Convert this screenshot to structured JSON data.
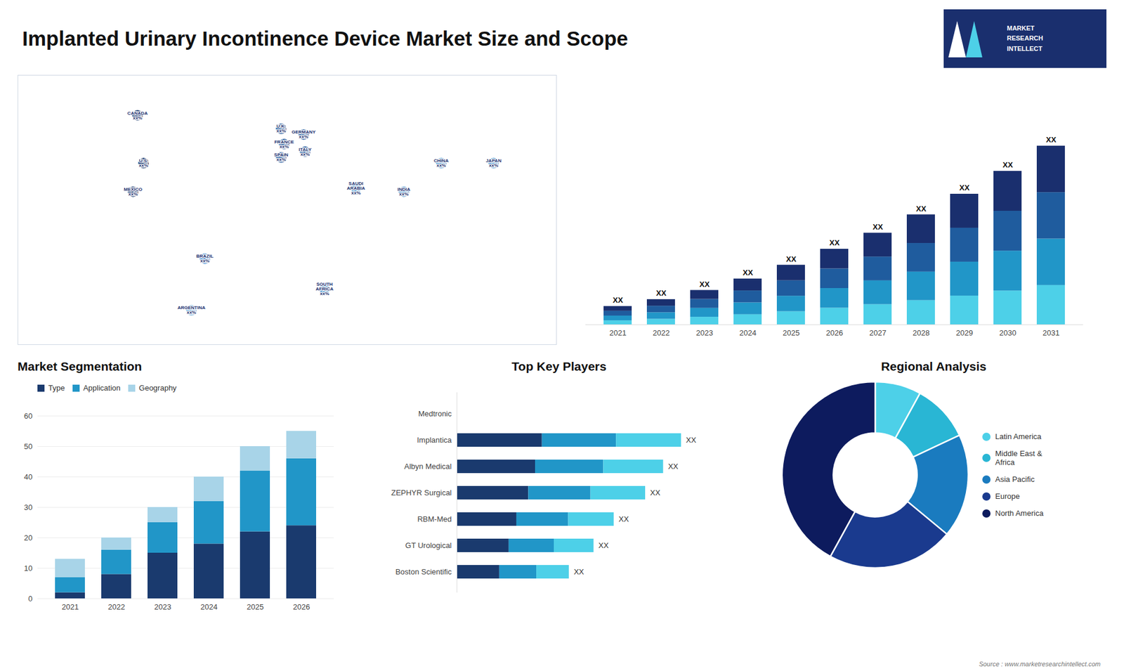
{
  "title": "Implanted Urinary Incontinence Device Market Size and Scope",
  "annotations": [
    "MARKET",
    "RESEARCH",
    "INTELLECT",
    "Source : www.marketresearchintellect.com"
  ],
  "chart_data": [
    {
      "type": "map",
      "categories": [
        "CANADA\nxx%",
        "U.S.\nxx%",
        "MEXICO\nxx%",
        "BRAZIL\nxx%",
        "ARGENTINA\nxx%",
        "U.K.\nxx%",
        "FRANCE\nxx%",
        "GERMANY\nxx%",
        "SPAIN\nxx%",
        "ITALY\nxx%",
        "SAUDI\nARABIA\nxx%",
        "SOUTH\nAFRICA\nxx%",
        "CHINA\nxx%",
        "INDIA\nxx%",
        "JAPAN\nxx%"
      ],
      "x": [
        -100,
        -96,
        -103,
        -55,
        -64,
        -4,
        -2,
        11,
        -4,
        12,
        46,
        25,
        103,
        78,
        138
      ],
      "y": [
        62,
        37,
        22,
        -13,
        -40,
        55,
        47,
        52,
        40,
        43,
        24,
        -29,
        37,
        22,
        37
      ],
      "colors": [
        "#1a3a6e",
        "#1a3a6e",
        "#1a3a6e",
        "#4a90d4",
        "#7ab4e0",
        "#2a5fa0",
        "#2a5fa0",
        "#2a5fa0",
        "#2a5fa0",
        "#2a5fa0",
        "#5a9fd4",
        "#5a9fd4",
        "#5a9fd4",
        "#5a9fd4",
        "#5a9fd4"
      ],
      "color": "#1a2f6e",
      "xlim": [
        -180,
        180
      ],
      "ylim": [
        -58,
        83
      ],
      "tick_labels": false
    },
    {
      "type": "bar",
      "stacked": true,
      "categories": [
        2021,
        2022,
        2023,
        2024,
        2025,
        2026,
        2027,
        2028,
        2029,
        2030,
        2031
      ],
      "series": [
        {
          "color": "#4dd0e8",
          "values": [
            1.76,
            2.42,
            3.3,
            4.4,
            5.72,
            7.26,
            8.8,
            10.56,
            12.54,
            14.74,
            17.16
          ]
        },
        {
          "color": "#2196c8",
          "values": [
            2.08,
            2.86,
            3.9,
            5.2,
            6.76,
            8.58,
            10.4,
            12.48,
            14.82,
            17.42,
            20.28
          ]
        },
        {
          "color": "#1f5c9e",
          "values": [
            2.08,
            2.86,
            3.9,
            5.2,
            6.76,
            8.58,
            10.4,
            12.48,
            14.82,
            17.42,
            20.28
          ]
        },
        {
          "color": "#1a2f6e",
          "values": [
            2.08,
            2.86,
            3.9,
            5.2,
            6.76,
            8.58,
            10.4,
            12.48,
            14.82,
            17.42,
            20.28
          ]
        }
      ],
      "ylim": [
        0,
        105.3
      ],
      "tick_labels": "x",
      "annotations": [
        "XX",
        "XX",
        "XX",
        "XX",
        "XX",
        "XX",
        "XX",
        "XX",
        "XX",
        "XX",
        "XX"
      ]
    },
    {
      "type": "bar",
      "stacked": true,
      "title": "Market Segmentation",
      "categories": [
        2021,
        2022,
        2023,
        2024,
        2025,
        2026
      ],
      "series": [
        {
          "name": "Type",
          "color": "#1a3a6e",
          "values": [
            2,
            8,
            15,
            18,
            22,
            24
          ]
        },
        {
          "name": "Application",
          "color": "#2196c8",
          "values": [
            5,
            8,
            10,
            14,
            20,
            22
          ]
        },
        {
          "name": "Geography",
          "color": "#a8d4e8",
          "values": [
            6,
            4,
            5,
            8,
            8,
            9
          ]
        }
      ],
      "ylim": [
        0,
        60
      ],
      "yticks": [
        0,
        10,
        20,
        30,
        40,
        50,
        60
      ],
      "grid": true,
      "legend": "top"
    },
    {
      "type": "bar",
      "stacked": true,
      "orientation": "horizontal",
      "title": "Top Key Players",
      "categories": [
        "Medtronic",
        "Implantica",
        "Albyn Medical",
        "ZEPHYR Surgical",
        "RBM-Med",
        "GT Urological",
        "Boston Scientific"
      ],
      "series": [
        {
          "color": "#1a3a6e",
          "values": [
            0,
            0.38,
            0.3496,
            0.3192,
            0.266,
            0.2318,
            0.19
          ]
        },
        {
          "color": "#2196c8",
          "values": [
            0,
            0.33,
            0.3036,
            0.2772,
            0.231,
            0.2013,
            0.165
          ]
        },
        {
          "color": "#4dd0e8",
          "values": [
            0,
            0.29,
            0.2668,
            0.2436,
            0.203,
            0.1769,
            0.145
          ]
        }
      ],
      "xlim": [
        0,
        1.2
      ],
      "tick_labels": "y",
      "annotations": [
        null,
        "XX",
        "XX",
        "XX",
        "XX",
        "XX",
        "XX"
      ]
    },
    {
      "type": "donut",
      "title": "Regional Analysis",
      "categories": [
        "Latin America",
        "Middle East &\nAfrica",
        "Asia Pacific",
        "Europe",
        "North America"
      ],
      "values": [
        8,
        10,
        18,
        22,
        42
      ],
      "colors": [
        "#4dd0e8",
        "#29b6d4",
        "#1a7bbf",
        "#1a3a8e",
        "#0d1b5e"
      ],
      "legend": "right"
    }
  ]
}
